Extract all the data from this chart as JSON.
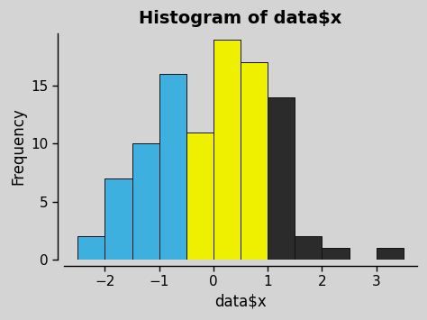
{
  "title": "Histogram of data$x",
  "xlabel": "data$x",
  "ylabel": "Frequency",
  "background_color": "#d4d4d4",
  "plot_bg_color": "#d4d4d4",
  "bar_edges": [
    -2.5,
    -2.0,
    -1.5,
    -1.0,
    -0.5,
    0.0,
    0.5,
    1.0,
    1.5,
    2.0,
    2.5,
    3.0,
    3.5
  ],
  "bar_heights": [
    2,
    7,
    10,
    16,
    11,
    19,
    17,
    14,
    2,
    1,
    0,
    1
  ],
  "bar_colors": [
    "#3eb0e0",
    "#3eb0e0",
    "#3eb0e0",
    "#3eb0e0",
    "#efef00",
    "#efef00",
    "#efef00",
    "#2b2b2b",
    "#2b2b2b",
    "#2b2b2b",
    "#2b2b2b",
    "#2b2b2b"
  ],
  "bar_edgecolor": "#111111",
  "xlim": [
    -2.75,
    3.75
  ],
  "ylim": [
    0,
    19.5
  ],
  "yticks": [
    0,
    5,
    10,
    15
  ],
  "xticks": [
    -2,
    -1,
    0,
    1,
    2,
    3
  ],
  "title_fontsize": 14,
  "label_fontsize": 12,
  "tick_fontsize": 11,
  "spine_color": "#000000"
}
